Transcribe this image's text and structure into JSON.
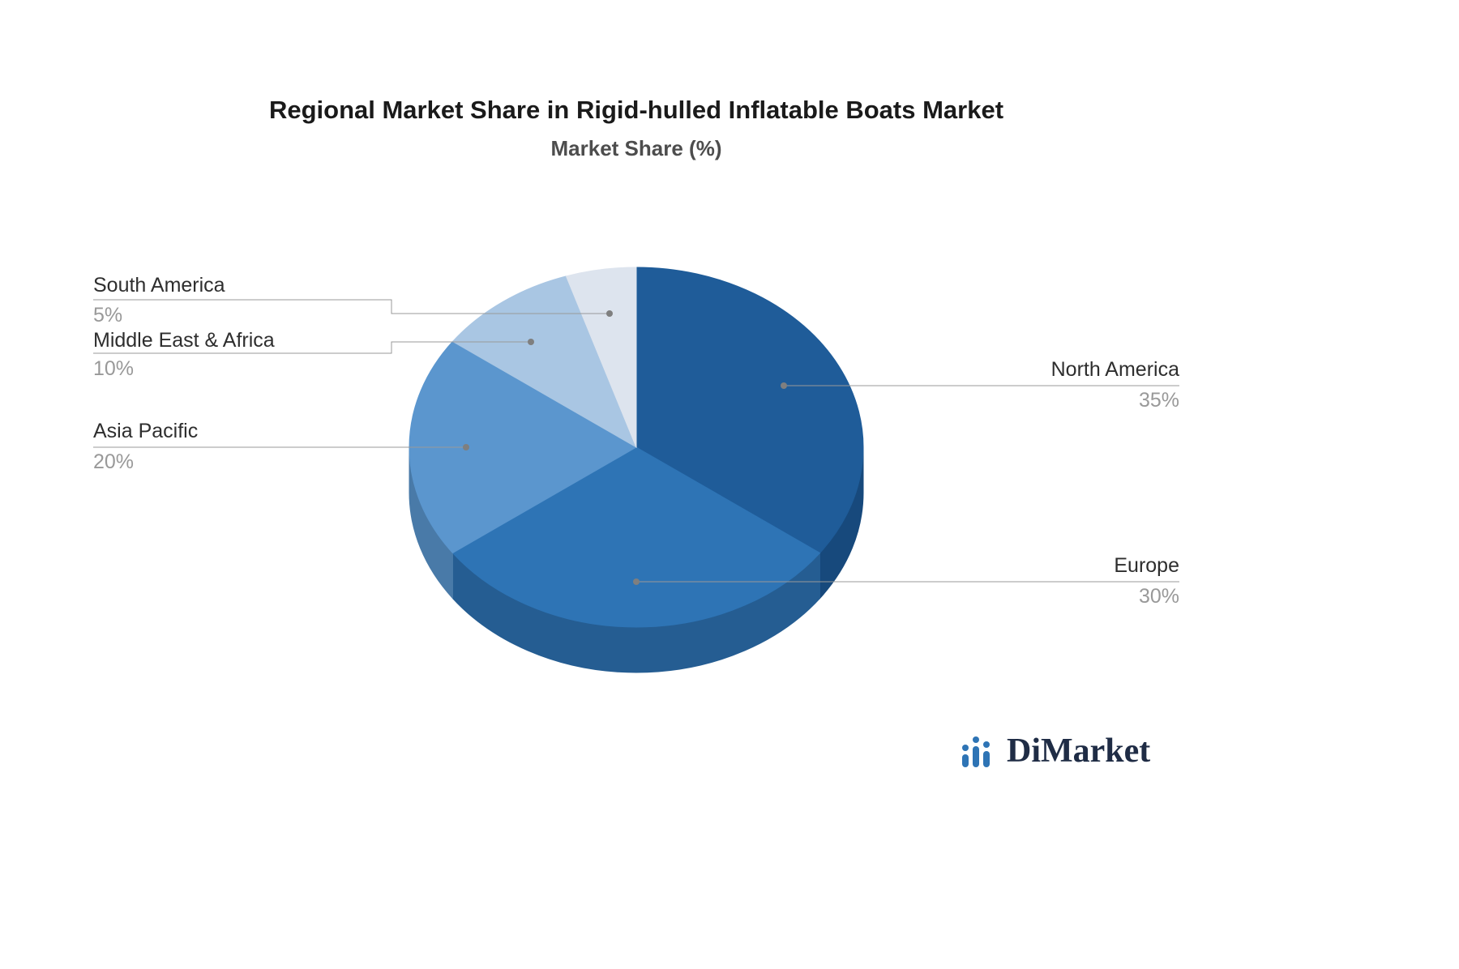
{
  "chart_data": {
    "type": "pie",
    "effect": "3d",
    "title": "Regional Market Share in Rigid-hulled Inflatable Boats Market",
    "subtitle": "Market Share (%)",
    "unit": "%",
    "labels": [
      "North America",
      "Europe",
      "Asia Pacific",
      "Middle East & Africa",
      "South America"
    ],
    "values": [
      35,
      30,
      20,
      10,
      5
    ],
    "colors": [
      "#1f5c99",
      "#2e74b5",
      "#5b96ce",
      "#a9c6e3",
      "#dde4ee"
    ],
    "side_colors": [
      "#17497c",
      "#255d92",
      "#497aa8",
      "#8aa8c6",
      "#b9c3cf"
    ],
    "start_angle_deg": -90,
    "direction": "clockwise",
    "legend": "none",
    "label_style": {
      "name_color": "#2e2e2e",
      "percent_color": "#999999",
      "leader_line_color": "#999999",
      "leader_dot_color": "#7f7f7f"
    }
  },
  "logo": {
    "text": "DiMarket",
    "icon": "bar-chart-icon",
    "icon_color": "#2e74b5",
    "text_color": "#1f2c45"
  }
}
